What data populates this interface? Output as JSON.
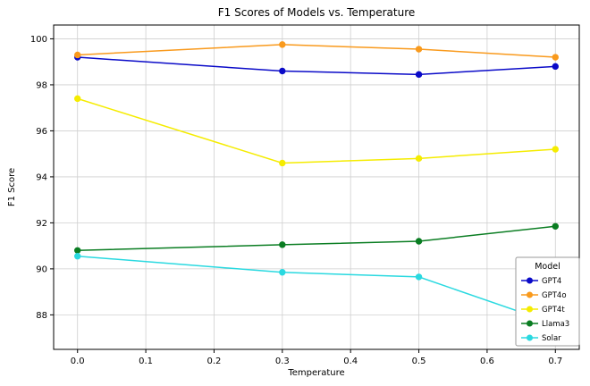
{
  "chart_data": {
    "type": "line",
    "title": "F1 Scores of Models vs. Temperature",
    "xlabel": "Temperature",
    "ylabel": "F1 Score",
    "x": [
      0.0,
      0.3,
      0.5,
      0.7
    ],
    "xlim": [
      -0.035,
      0.735
    ],
    "ylim": [
      86.5,
      100.6
    ],
    "xticks": [
      0.0,
      0.1,
      0.2,
      0.3,
      0.4,
      0.5,
      0.6,
      0.7
    ],
    "yticks": [
      88,
      90,
      92,
      94,
      96,
      98,
      100
    ],
    "grid": true,
    "legend": {
      "title": "Model",
      "position": "lower right"
    },
    "series": [
      {
        "name": "GPT4",
        "color": "#0a0ac8",
        "values": [
          99.2,
          98.6,
          98.45,
          98.8
        ]
      },
      {
        "name": "GPT4o",
        "color": "#f99a1d",
        "values": [
          99.3,
          99.75,
          99.55,
          99.2
        ]
      },
      {
        "name": "GPT4t",
        "color": "#f5ec00",
        "values": [
          97.4,
          94.6,
          94.8,
          95.2
        ]
      },
      {
        "name": "Llama3",
        "color": "#0a7d22",
        "values": [
          90.8,
          91.05,
          91.2,
          91.85
        ]
      },
      {
        "name": "Solar",
        "color": "#2ad9e0",
        "values": [
          90.55,
          89.85,
          89.65,
          87.6
        ]
      }
    ],
    "style": {
      "grid_color": "#cfcfcf",
      "axis_color": "#000000",
      "legend_border": "#9a9a9a",
      "background": "#ffffff"
    }
  }
}
